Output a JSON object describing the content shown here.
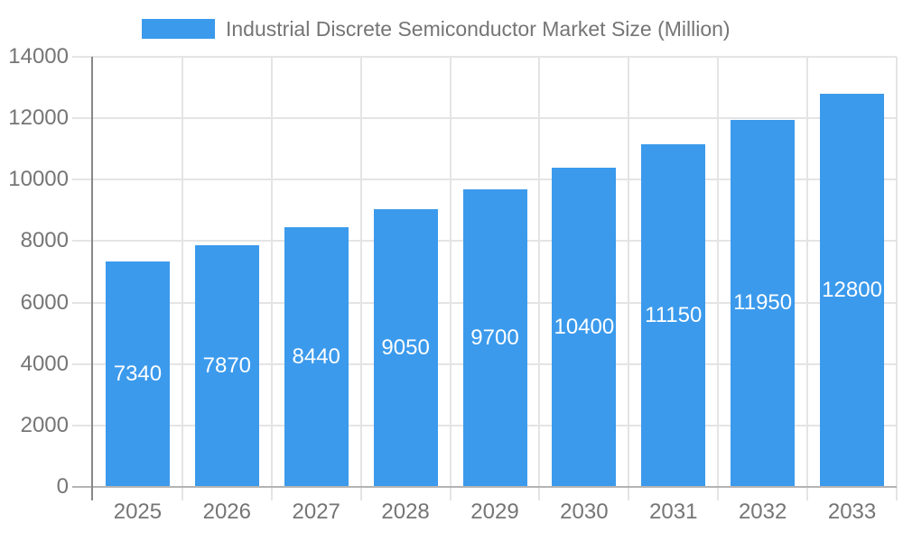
{
  "chart_data": {
    "type": "bar",
    "title": "",
    "legend": "Industrial Discrete Semiconductor Market Size (Million)",
    "legend_position": "top",
    "categories": [
      "2025",
      "2026",
      "2027",
      "2028",
      "2029",
      "2030",
      "2031",
      "2032",
      "2033"
    ],
    "values": [
      7340,
      7870,
      8440,
      9050,
      9700,
      10400,
      11150,
      11950,
      12800
    ],
    "xlabel": "",
    "ylabel": "",
    "ylim": [
      0,
      14000
    ],
    "ytick_step": 2000,
    "ytick_labels": [
      "0",
      "2000",
      "4000",
      "6000",
      "8000",
      "10000",
      "12000",
      "14000"
    ],
    "grid": true,
    "colors": {
      "bar": "#3B9AEC",
      "bar_value_label": "#FFFFFF",
      "axis_label": "#757575",
      "legend_text": "#757575",
      "gridline": "#E4E4E4",
      "x_axis_line": "#B3B3B3",
      "y_axis_line": "#888888"
    }
  }
}
